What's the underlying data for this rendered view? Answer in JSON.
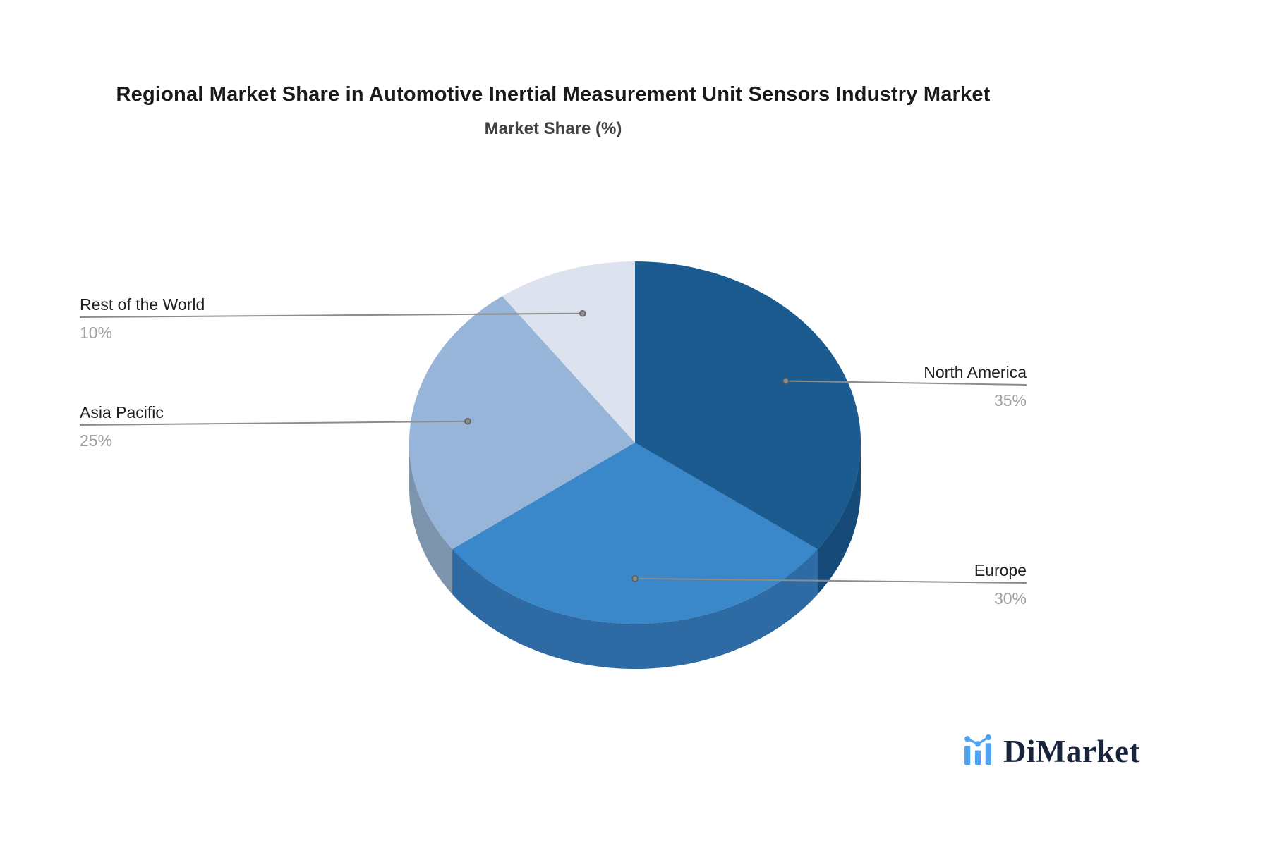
{
  "title": "Regional Market Share in Automotive Inertial Measurement Unit Sensors Industry Market",
  "subtitle": "Market Share (%)",
  "brand": {
    "name": "DiMarket",
    "icon": "bar-line-chart-icon",
    "icon_color": "#4da3f2",
    "text_color": "#18253c"
  },
  "chart_data": {
    "type": "pie",
    "style": "3d",
    "title": "Regional Market Share in Automotive Inertial Measurement Unit Sensors Industry Market",
    "subtitle": "Market Share (%)",
    "unit": "%",
    "direction": "clockwise",
    "start_angle_deg": 0,
    "legend": "none",
    "labels": [
      "North America",
      "Europe",
      "Asia Pacific",
      "Rest of the World"
    ],
    "values": [
      35,
      30,
      25,
      10
    ],
    "slices": [
      {
        "label": "North America",
        "value": 35,
        "value_label": "35%",
        "color": "#1c5b90",
        "side_color": "#164a78"
      },
      {
        "label": "Europe",
        "value": 30,
        "value_label": "30%",
        "color": "#3a87ca",
        "side_color": "#2e6ba4"
      },
      {
        "label": "Asia Pacific",
        "value": 25,
        "value_label": "25%",
        "color": "#97b5d8",
        "side_color": "#7d94ad"
      },
      {
        "label": "Rest of the World",
        "value": 10,
        "value_label": "10%",
        "color": "#dde3ee",
        "side_color": "#b8c3d3"
      }
    ],
    "callout": {
      "line_color": "#8c8c8c",
      "dot_color": "#8c8c8c",
      "label_color": "#1f1f1f",
      "value_color": "#9f9f9f"
    }
  }
}
